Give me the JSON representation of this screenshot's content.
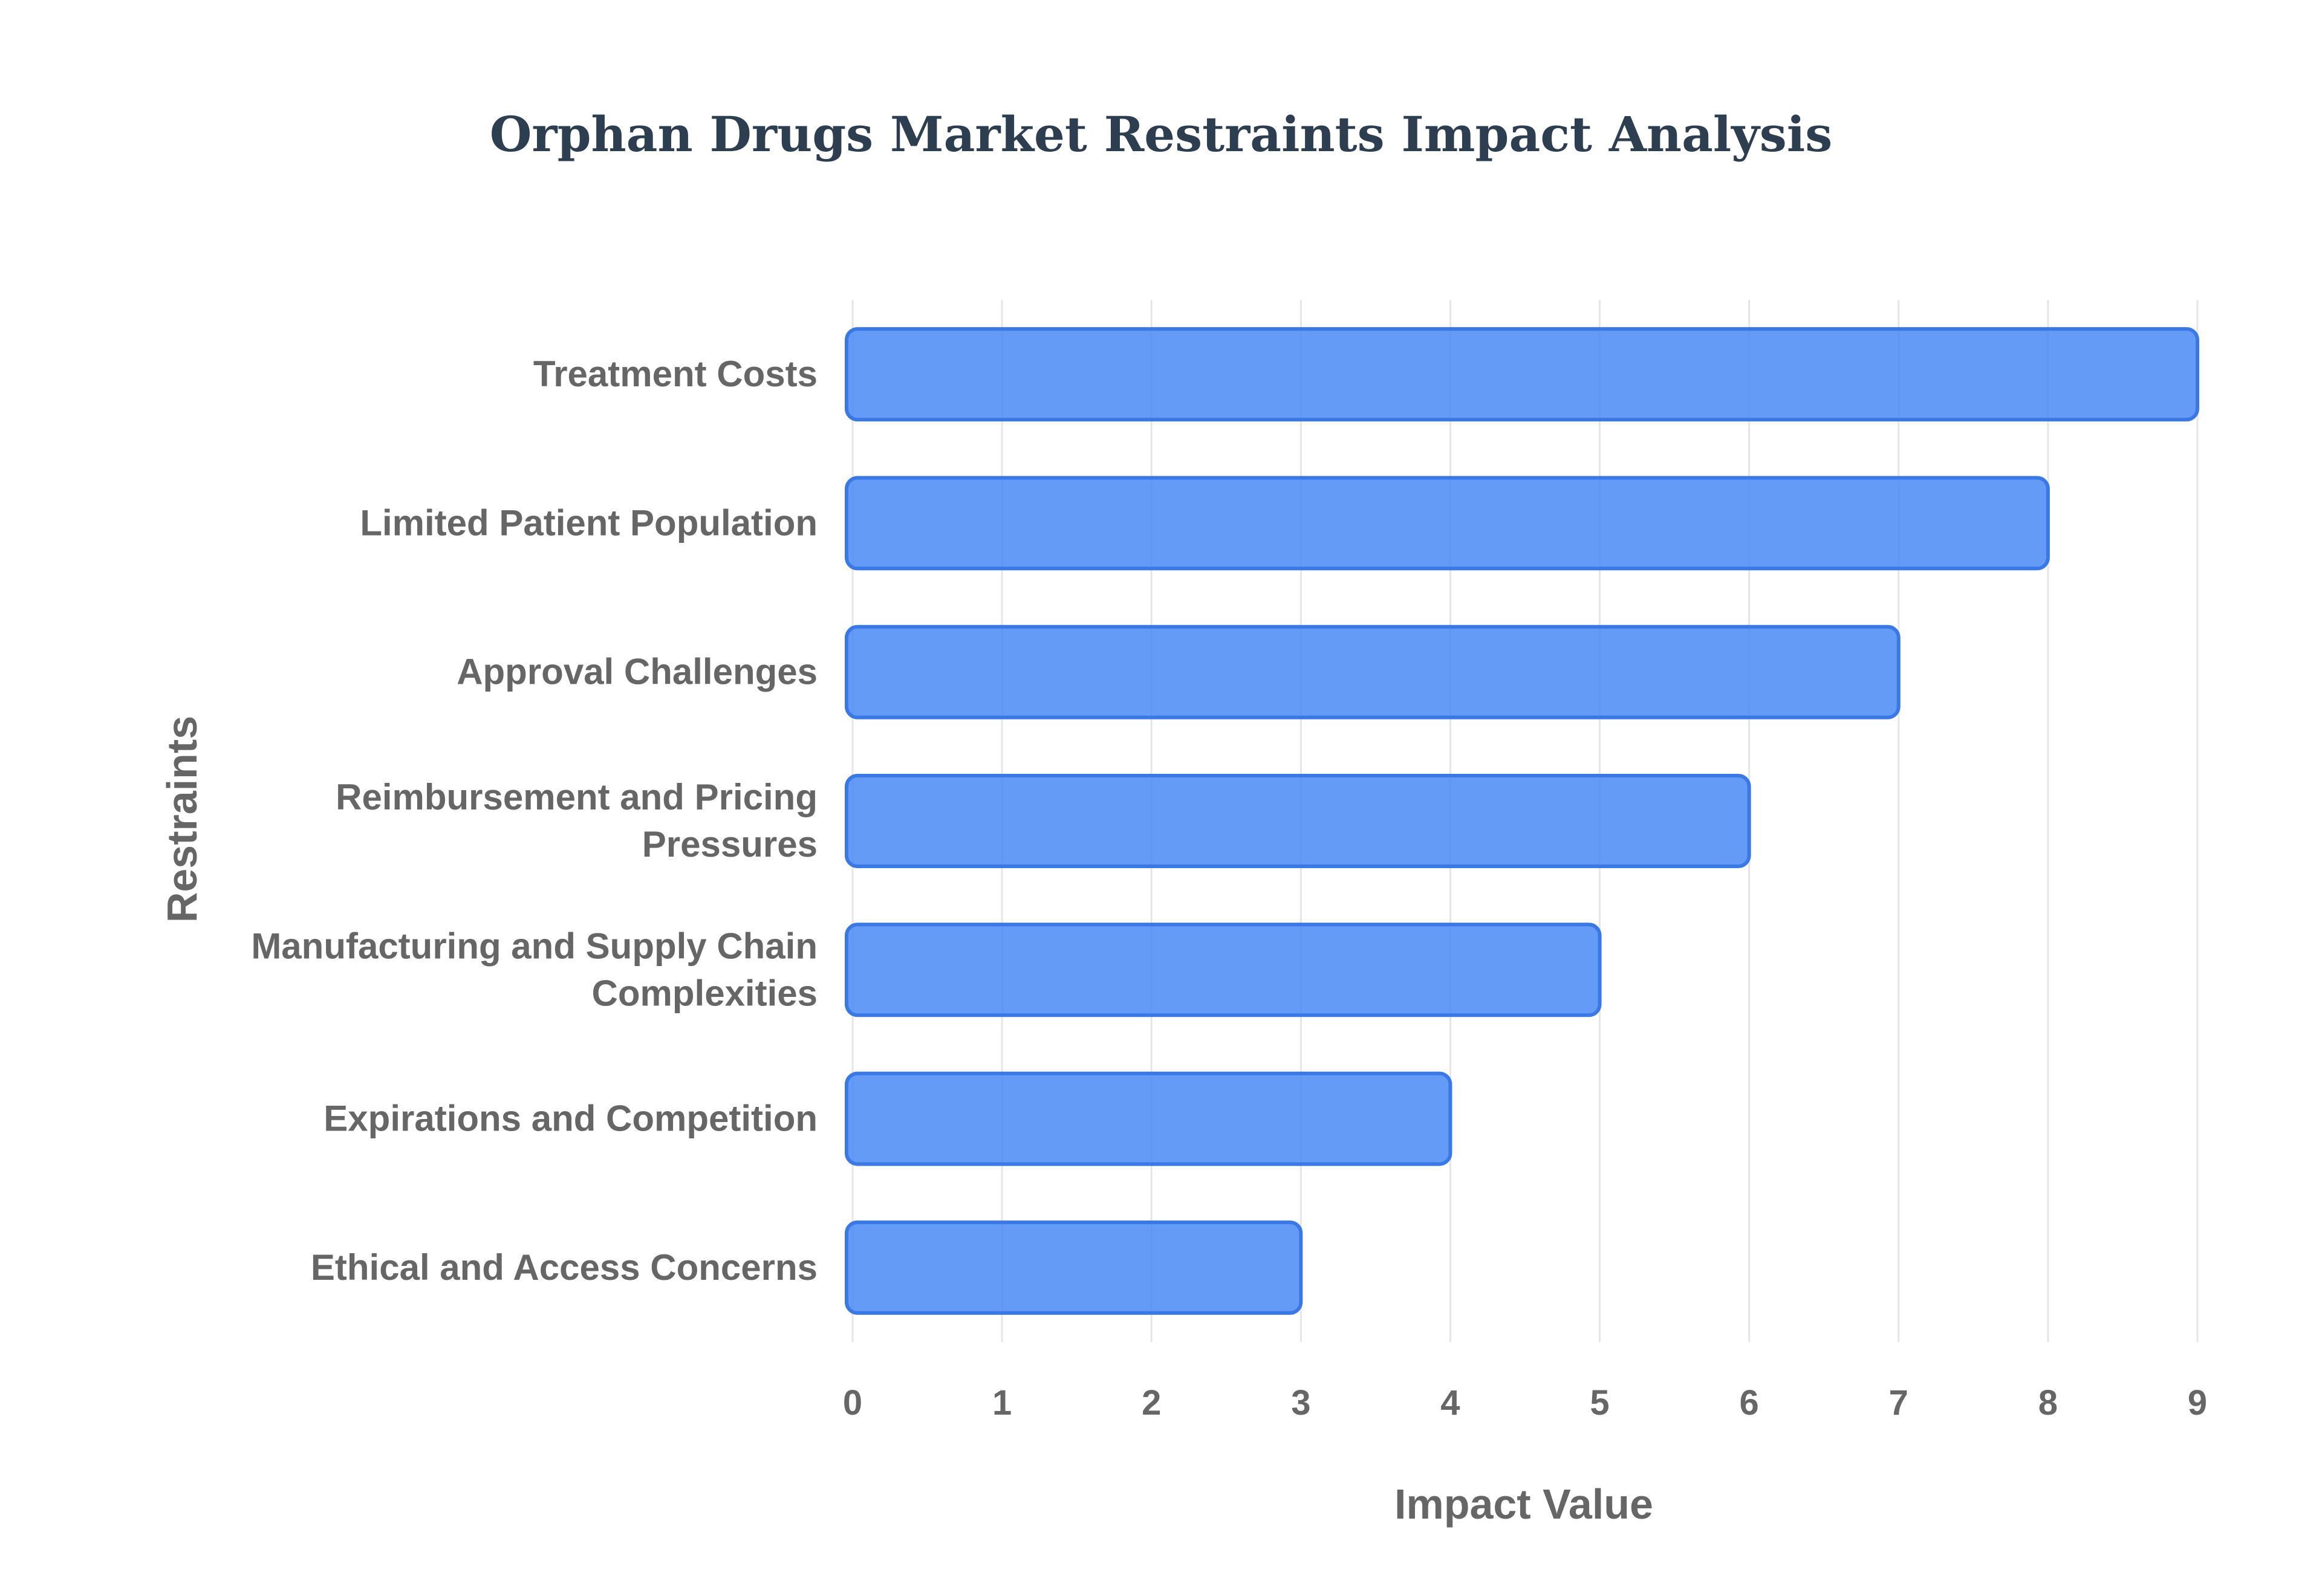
{
  "chart_data": {
    "type": "bar",
    "orientation": "horizontal",
    "title": "Orphan Drugs Market Restraints Impact Analysis",
    "xlabel": "Impact Value",
    "ylabel": "Restraints",
    "categories": [
      "Treatment Costs",
      "Limited Patient Population",
      "Approval Challenges",
      "Reimbursement and Pricing Pressures",
      "Manufacturing and Supply Chain Complexities",
      "Expirations and Competition",
      "Ethical and Access Concerns"
    ],
    "category_lines": [
      [
        "Treatment Costs"
      ],
      [
        "Limited Patient Population"
      ],
      [
        "Approval Challenges"
      ],
      [
        "Reimbursement and Pricing",
        "Pressures"
      ],
      [
        "Manufacturing and Supply Chain",
        "Complexities"
      ],
      [
        "Expirations and Competition"
      ],
      [
        "Ethical and Access Concerns"
      ]
    ],
    "values": [
      9,
      8,
      7,
      6,
      5,
      4,
      3
    ],
    "xlim": [
      0,
      9
    ],
    "xticks": [
      "0",
      "1",
      "2",
      "3",
      "4",
      "5",
      "6",
      "7",
      "8",
      "9"
    ],
    "grid": true,
    "legend": "none",
    "colors": {
      "bar_fill": "#5f97f6",
      "bar_border": "#3a78e6",
      "title": "#2c3e50",
      "labels": "#666666",
      "grid": "#e6e6e6"
    }
  }
}
